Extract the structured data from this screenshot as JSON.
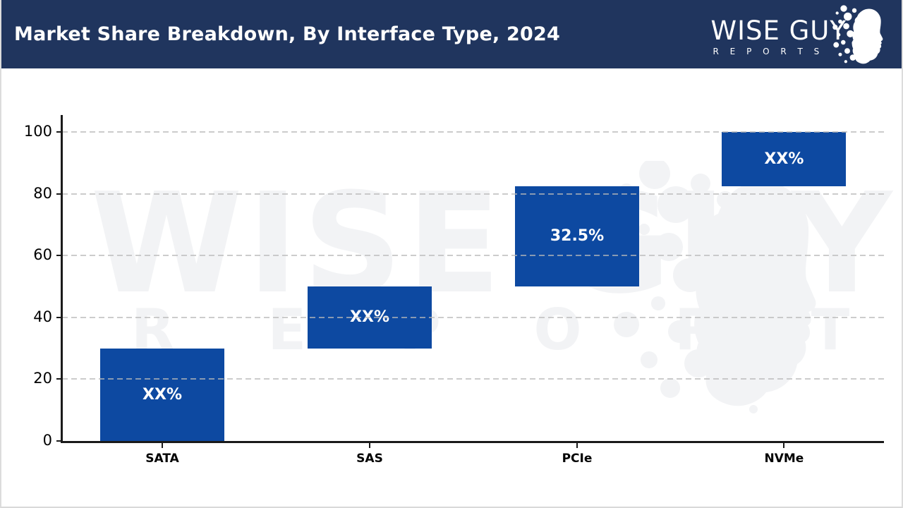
{
  "header": {
    "title": "Market Share Breakdown, By Interface Type, 2024",
    "logo": {
      "line1": "WISE GUY",
      "line2": "R E P O R T S"
    }
  },
  "watermark": {
    "line1": "WISE GUY",
    "line2": "R E P O R T S"
  },
  "chart_data": {
    "type": "bar",
    "subtype": "waterfall",
    "title": "Market Share Breakdown, By Interface Type, 2024",
    "categories": [
      "SATA",
      "SAS",
      "PCIe",
      "NVMe"
    ],
    "bars": [
      {
        "category": "SATA",
        "base": 0,
        "top": 30,
        "label": "XX%"
      },
      {
        "category": "SAS",
        "base": 30,
        "top": 50,
        "label": "XX%"
      },
      {
        "category": "PCIe",
        "base": 50,
        "top": 82.5,
        "label": "32.5%"
      },
      {
        "category": "NVMe",
        "base": 82.5,
        "top": 100,
        "label": "XX%"
      }
    ],
    "yticks": [
      0,
      20,
      40,
      60,
      80,
      100
    ],
    "ylim": [
      0,
      105.5
    ],
    "xlabel": "",
    "ylabel": "",
    "legend": "none",
    "grid": "horizontal-dashed",
    "bar_color": "#0d49a1",
    "bar_label_color": "#ffffff"
  },
  "colors": {
    "header_bg": "#20355e",
    "bar": "#0d49a1",
    "grid": "#b9b9b9",
    "axis": "#1a1a1a",
    "watermark": "#f2f3f5"
  }
}
